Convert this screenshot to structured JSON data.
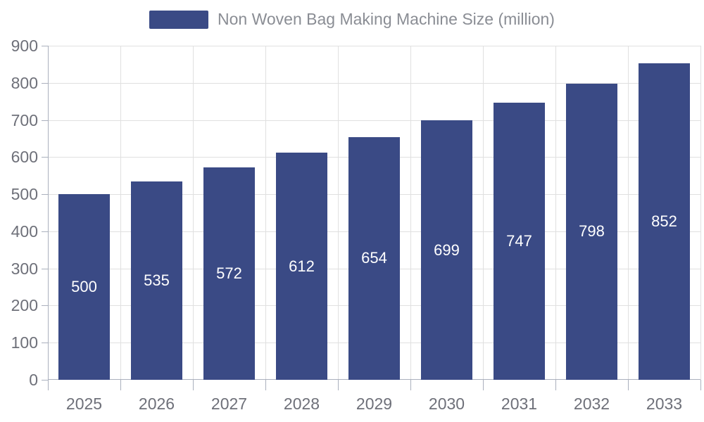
{
  "legend": {
    "label": "Non Woven Bag Making Machine Size (million)",
    "swatch_color": "#3a4a85"
  },
  "chart_data": {
    "type": "bar",
    "categories": [
      "2025",
      "2026",
      "2027",
      "2028",
      "2029",
      "2030",
      "2031",
      "2032",
      "2033"
    ],
    "values": [
      500,
      535,
      572,
      612,
      654,
      699,
      747,
      798,
      852
    ],
    "title": "Non Woven Bag Making Machine Size (million)",
    "xlabel": "",
    "ylabel": "",
    "ylim": [
      0,
      900
    ],
    "ytick_interval": 100,
    "ytick_labels": [
      "0",
      "100",
      "200",
      "300",
      "400",
      "500",
      "600",
      "700",
      "800",
      "900"
    ],
    "grid": true,
    "legend_position": "top",
    "colors": {
      "bar": "#3a4a85",
      "gridline": "#e0e0e0",
      "axis_line": "#aab0bd",
      "tick_text": "#6e7079",
      "legend_text": "#8a8d94",
      "value_label": "#ffffff"
    }
  }
}
